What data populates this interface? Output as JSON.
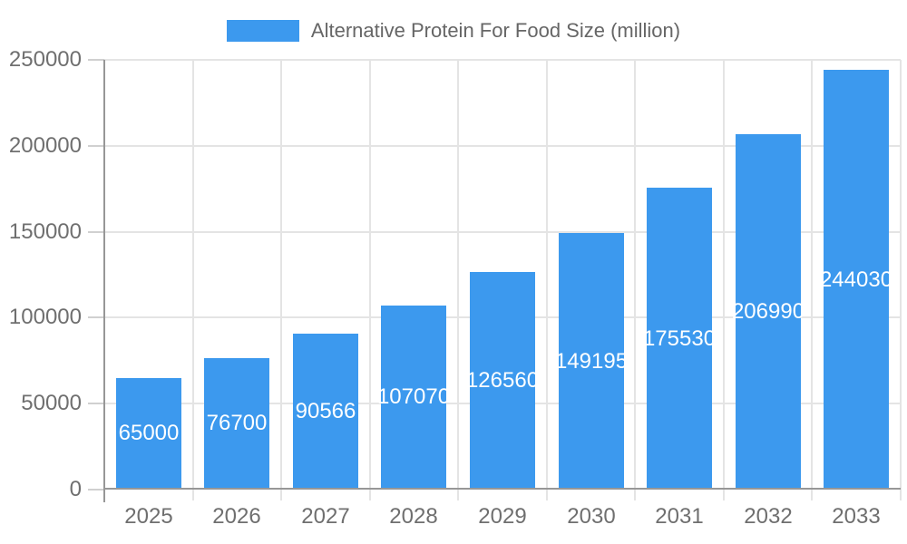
{
  "chart_data": {
    "type": "bar",
    "title": "Alternative Protein For Food Size (million)",
    "categories": [
      "2025",
      "2026",
      "2027",
      "2028",
      "2029",
      "2030",
      "2031",
      "2032",
      "2033"
    ],
    "values": [
      65000,
      76700,
      90566,
      107070,
      126560,
      149195,
      175530,
      206990,
      244030
    ],
    "xlabel": "",
    "ylabel": "",
    "ylim": [
      0,
      250000
    ],
    "yticks": [
      0,
      50000,
      100000,
      150000,
      200000,
      250000
    ],
    "legend_position": "top-center",
    "grid": true,
    "value_labels": "inside-center-white"
  },
  "colors": {
    "bar": "#3C99EE",
    "grid": "#E4E4E4",
    "tick": "#D0D0D0",
    "axis": "#979797",
    "axis_label": "#6F6F6F",
    "title_text": "#666666",
    "value_label": "#FFFFFF",
    "background": "#FFFFFF"
  }
}
